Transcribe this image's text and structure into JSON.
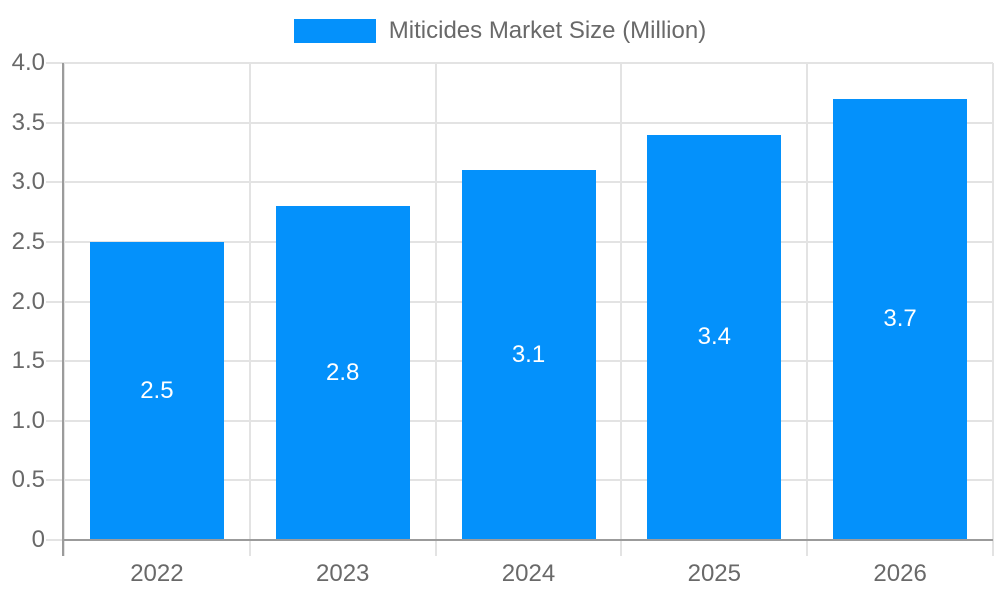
{
  "legend": {
    "label": "Miticides Market Size (Million)",
    "position": "top"
  },
  "colors": {
    "bar": "#0491FB",
    "text": "#696969",
    "axis": "#9B9B9B",
    "grid": "#E3E3E3",
    "value_label": "#FFFFFF",
    "background": "#FFFFFF"
  },
  "chart_data": {
    "type": "bar",
    "categories": [
      "2022",
      "2023",
      "2024",
      "2025",
      "2026"
    ],
    "series": [
      {
        "name": "Miticides Market Size (Million)",
        "values": [
          2.5,
          2.8,
          3.1,
          3.4,
          3.7
        ]
      }
    ],
    "value_labels": [
      "2.5",
      "2.8",
      "3.1",
      "3.4",
      "3.7"
    ],
    "value_label_position": "inside-center",
    "title": "",
    "xlabel": "",
    "ylabel": "",
    "ylim": [
      0,
      4.0
    ],
    "ytick_step": 0.5,
    "ytick_labels": [
      "0",
      "0.5",
      "1.0",
      "1.5",
      "2.0",
      "2.5",
      "3.0",
      "3.5",
      "4.0"
    ],
    "grid": true,
    "legend_position": "top"
  }
}
